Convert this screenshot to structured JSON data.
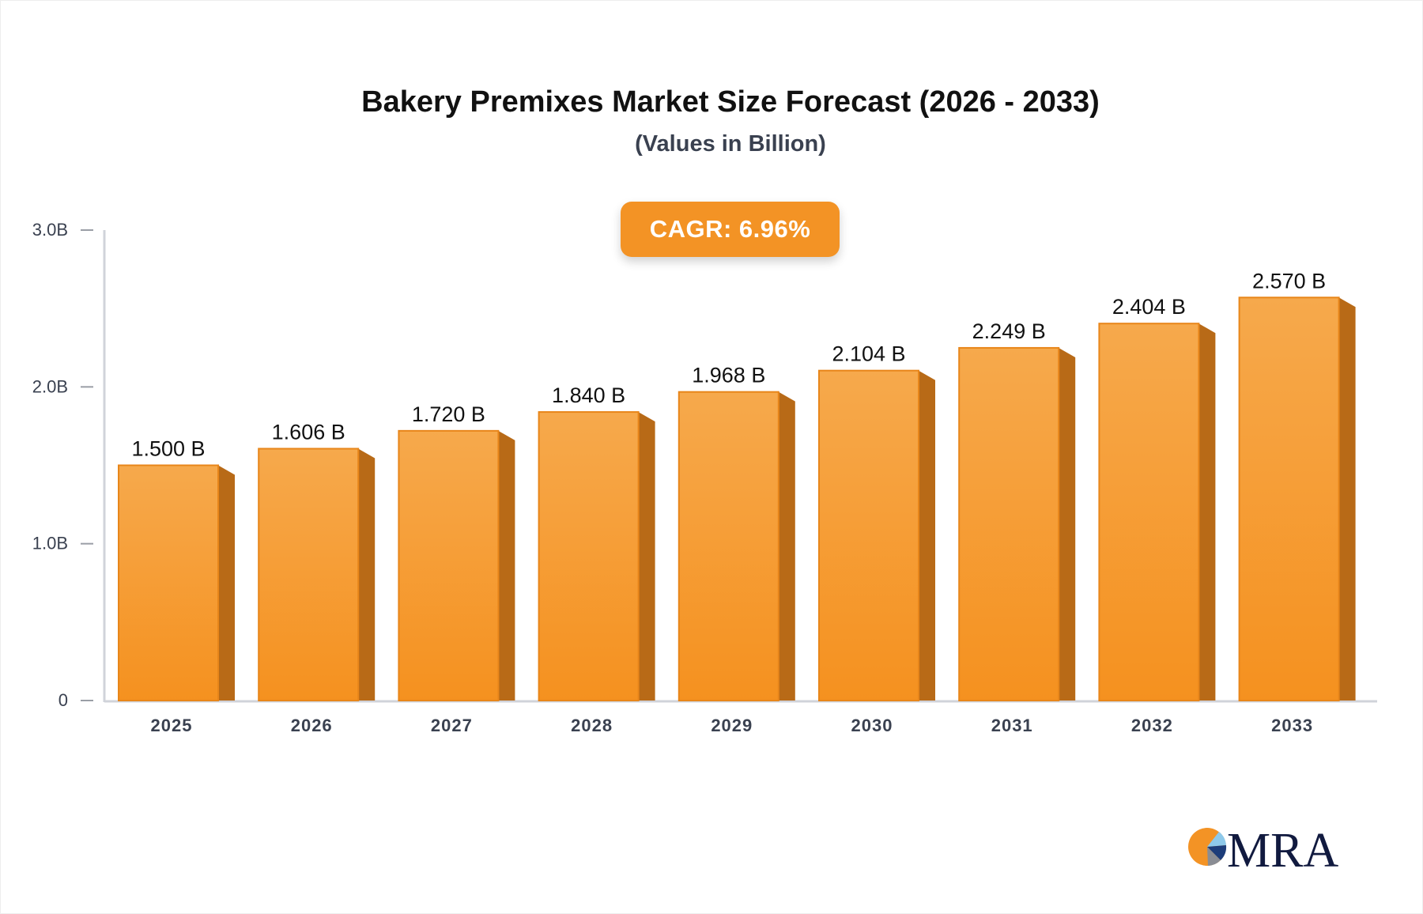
{
  "chart_data": {
    "type": "bar",
    "title": "Bakery Premixes Market Size Forecast (2026 - 2033)",
    "subtitle": "(Values in Billion)",
    "categories": [
      "2025",
      "2026",
      "2027",
      "2028",
      "2029",
      "2030",
      "2031",
      "2032",
      "2033"
    ],
    "values": [
      1.5,
      1.606,
      1.72,
      1.84,
      1.968,
      2.104,
      2.249,
      2.404,
      2.57
    ],
    "data_labels": [
      "1.500 B",
      "1.606 B",
      "1.720 B",
      "1.840 B",
      "1.968 B",
      "2.104 B",
      "2.249 B",
      "2.404 B",
      "2.570 B"
    ],
    "ylim": [
      0,
      3.0
    ],
    "yticks": [
      0,
      1.0,
      2.0,
      3.0
    ],
    "ytick_labels": [
      "0",
      "1.0B",
      "2.0B",
      "3.0B"
    ],
    "xlabel": "",
    "ylabel": "",
    "grid": false,
    "bar_style": "3d",
    "colors": {
      "bar_top": "#f6a94c",
      "bar_bottom": "#f5911f",
      "bar_side": "#b86a17",
      "axis": "#d0d3da"
    }
  },
  "annotation": {
    "cagr_label": "CAGR: 6.96%"
  },
  "logo": {
    "text": "MRA"
  }
}
